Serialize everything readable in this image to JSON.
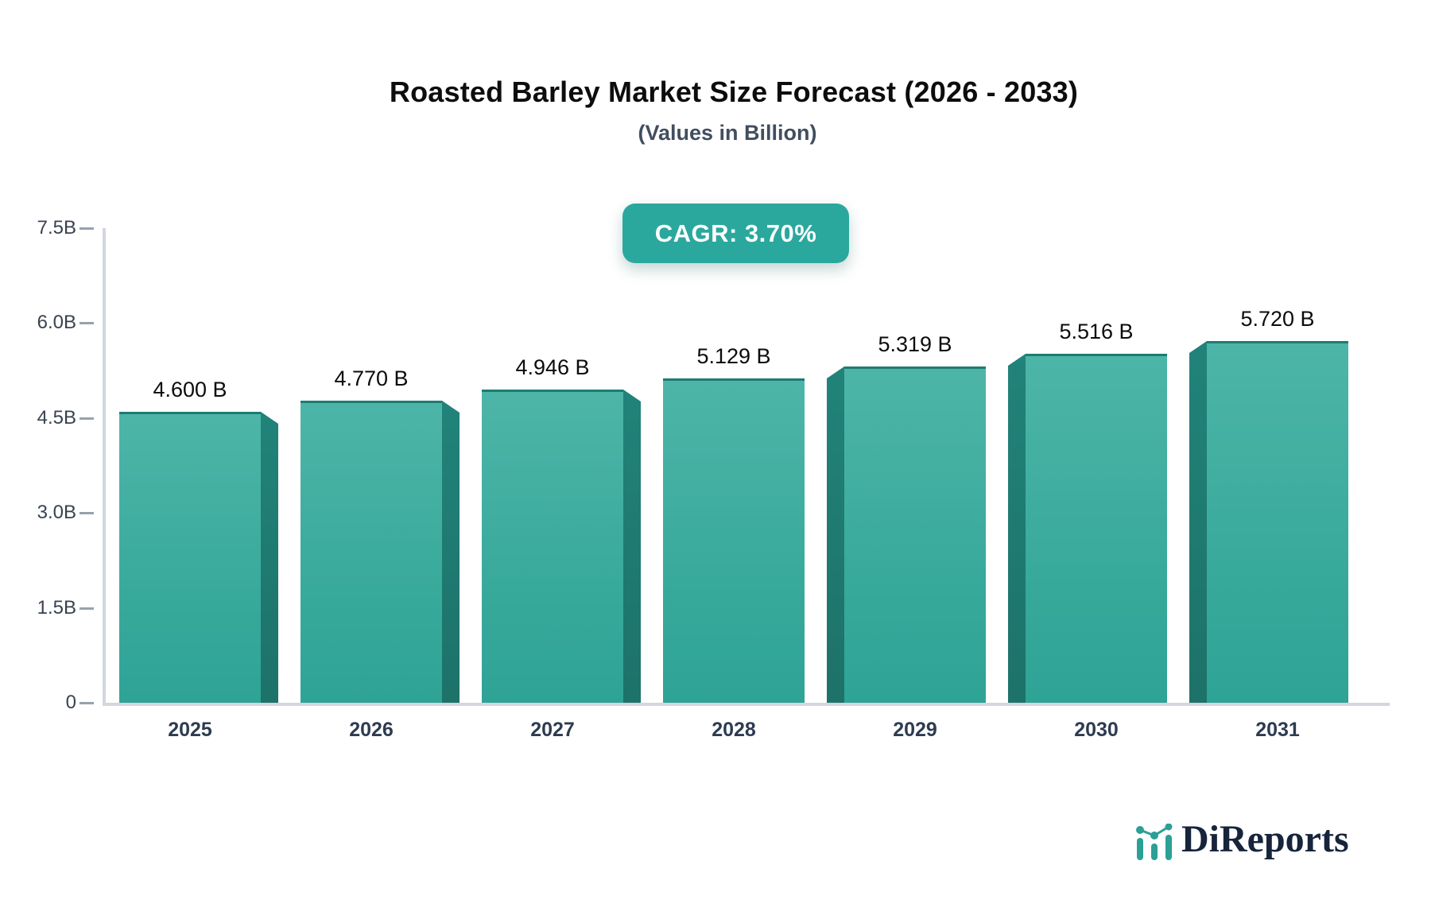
{
  "header": {
    "title": "Roasted Barley Market Size Forecast (2026 - 2033)",
    "subtitle": "(Values in Billion)"
  },
  "badge": {
    "label": "CAGR: 3.70%",
    "background": "#2BA89D"
  },
  "chart_data": {
    "type": "bar",
    "title": "Roasted Barley Market Size Forecast (2026 - 2033)",
    "subtitle": "(Values in Billion)",
    "xlabel": "",
    "ylabel": "",
    "unit": "Billion",
    "categories": [
      "2025",
      "2026",
      "2027",
      "2028",
      "2029",
      "2030",
      "2031"
    ],
    "values": [
      4.6,
      4.77,
      4.946,
      5.129,
      5.319,
      5.516,
      5.72
    ],
    "value_labels": [
      "4.600 B",
      "4.770 B",
      "4.946 B",
      "5.129 B",
      "5.319 B",
      "5.516 B",
      "5.720 B"
    ],
    "y_ticks": [
      {
        "label": "7.5B",
        "value": 7.5
      },
      {
        "label": "6.0B",
        "value": 6.0
      },
      {
        "label": "4.5B",
        "value": 4.5
      },
      {
        "label": "3.0B",
        "value": 3.0
      },
      {
        "label": "1.5B",
        "value": 1.5
      },
      {
        "label": "0",
        "value": 0
      }
    ],
    "ylim": [
      0,
      7.5
    ],
    "grid": false,
    "legend": null,
    "cagr": "3.70%",
    "colors": {
      "bar_face_top": "#4db5a8",
      "bar_face_bottom": "#2ea396",
      "bar_side": "#1e7e74",
      "bar_top_edge": "#1d7c72",
      "axis_line": "#d3d6dd",
      "tick_dash": "#99a0ad",
      "badge": "#2BA89D"
    }
  },
  "logo": {
    "text": "DiReports",
    "icon": "bar-chart-logo-icon",
    "text_color": "#16243c",
    "icon_color": "#2c9f96"
  }
}
